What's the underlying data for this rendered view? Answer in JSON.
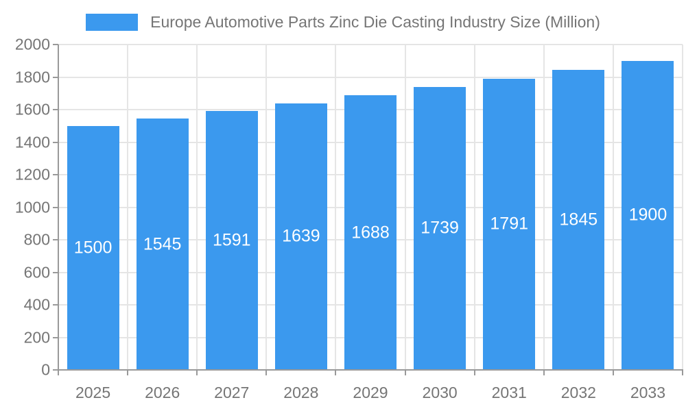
{
  "legend": {
    "label": "Europe Automotive Parts Zinc Die Casting Industry Size (Million)"
  },
  "colors": {
    "bar": "#3b99ee",
    "grid": "#e5e5e5",
    "axis": "#999999",
    "tick_label": "#757575",
    "value_label": "#ffffff",
    "background": "#ffffff"
  },
  "chart_data": {
    "type": "bar",
    "title": "",
    "xlabel": "",
    "ylabel": "",
    "categories": [
      "2025",
      "2026",
      "2027",
      "2028",
      "2029",
      "2030",
      "2031",
      "2032",
      "2033"
    ],
    "series": [
      {
        "name": "Europe Automotive Parts Zinc Die Casting Industry Size (Million)",
        "values": [
          1500,
          1545,
          1591,
          1639,
          1688,
          1739,
          1791,
          1845,
          1900
        ]
      }
    ],
    "ylim": [
      0,
      2000
    ],
    "ytick_step": 200,
    "yticks": [
      0,
      200,
      400,
      600,
      800,
      1000,
      1200,
      1400,
      1600,
      1800,
      2000
    ],
    "grid": "horizontal-and-vertical",
    "legend_position": "top",
    "value_label_position": "inside-center"
  }
}
